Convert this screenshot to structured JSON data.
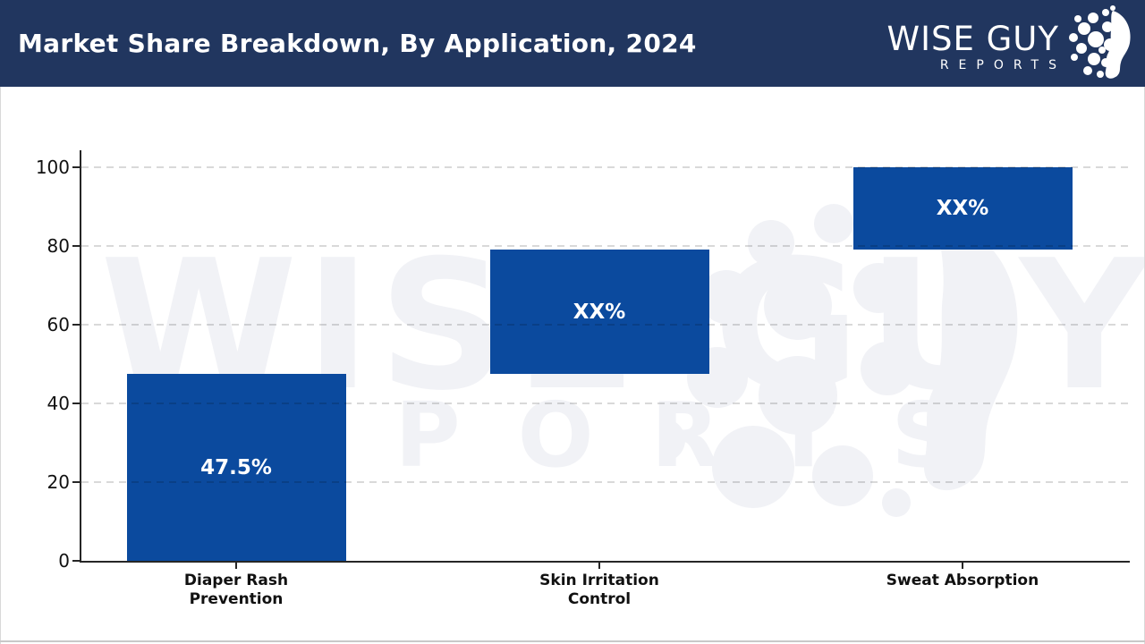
{
  "header": {
    "title": "Market Share Breakdown, By Application, 2024",
    "logo": {
      "line1": "WISE GUY",
      "line2": "REPORTS"
    }
  },
  "watermark": {
    "line1": "WISE GUY",
    "line2": "REPORTS"
  },
  "colors": {
    "header_bg": "#21365f",
    "bar": "#0b4a9e",
    "grid": "#d9d9d9",
    "axis": "#262626",
    "bar_label_text": "#ffffff",
    "watermark": "#f1f2f6"
  },
  "chart_data": {
    "type": "bar",
    "variant": "floating-waterfall",
    "title": "Market Share Breakdown, By Application, 2024",
    "categories": [
      [
        "Diaper Rash",
        "Prevention"
      ],
      [
        "Skin Irritation",
        "Control"
      ],
      [
        "Sweat Absorption"
      ]
    ],
    "segments": [
      {
        "category": "Diaper Rash Prevention",
        "start": 0,
        "end": 47.5,
        "label": "47.5%"
      },
      {
        "category": "Skin Irritation Control",
        "start": 47.5,
        "end": 79,
        "label": "XX%"
      },
      {
        "category": "Sweat Absorption",
        "start": 79,
        "end": 100,
        "label": "XX%"
      }
    ],
    "yticks": [
      0,
      20,
      40,
      60,
      80,
      100
    ],
    "ylim": [
      0,
      105
    ],
    "xlabel": "",
    "ylabel": "",
    "grid": "dashed horizontal",
    "legend": "none",
    "bar_color": "#0b4a9e",
    "value_label_color": "#ffffff"
  }
}
